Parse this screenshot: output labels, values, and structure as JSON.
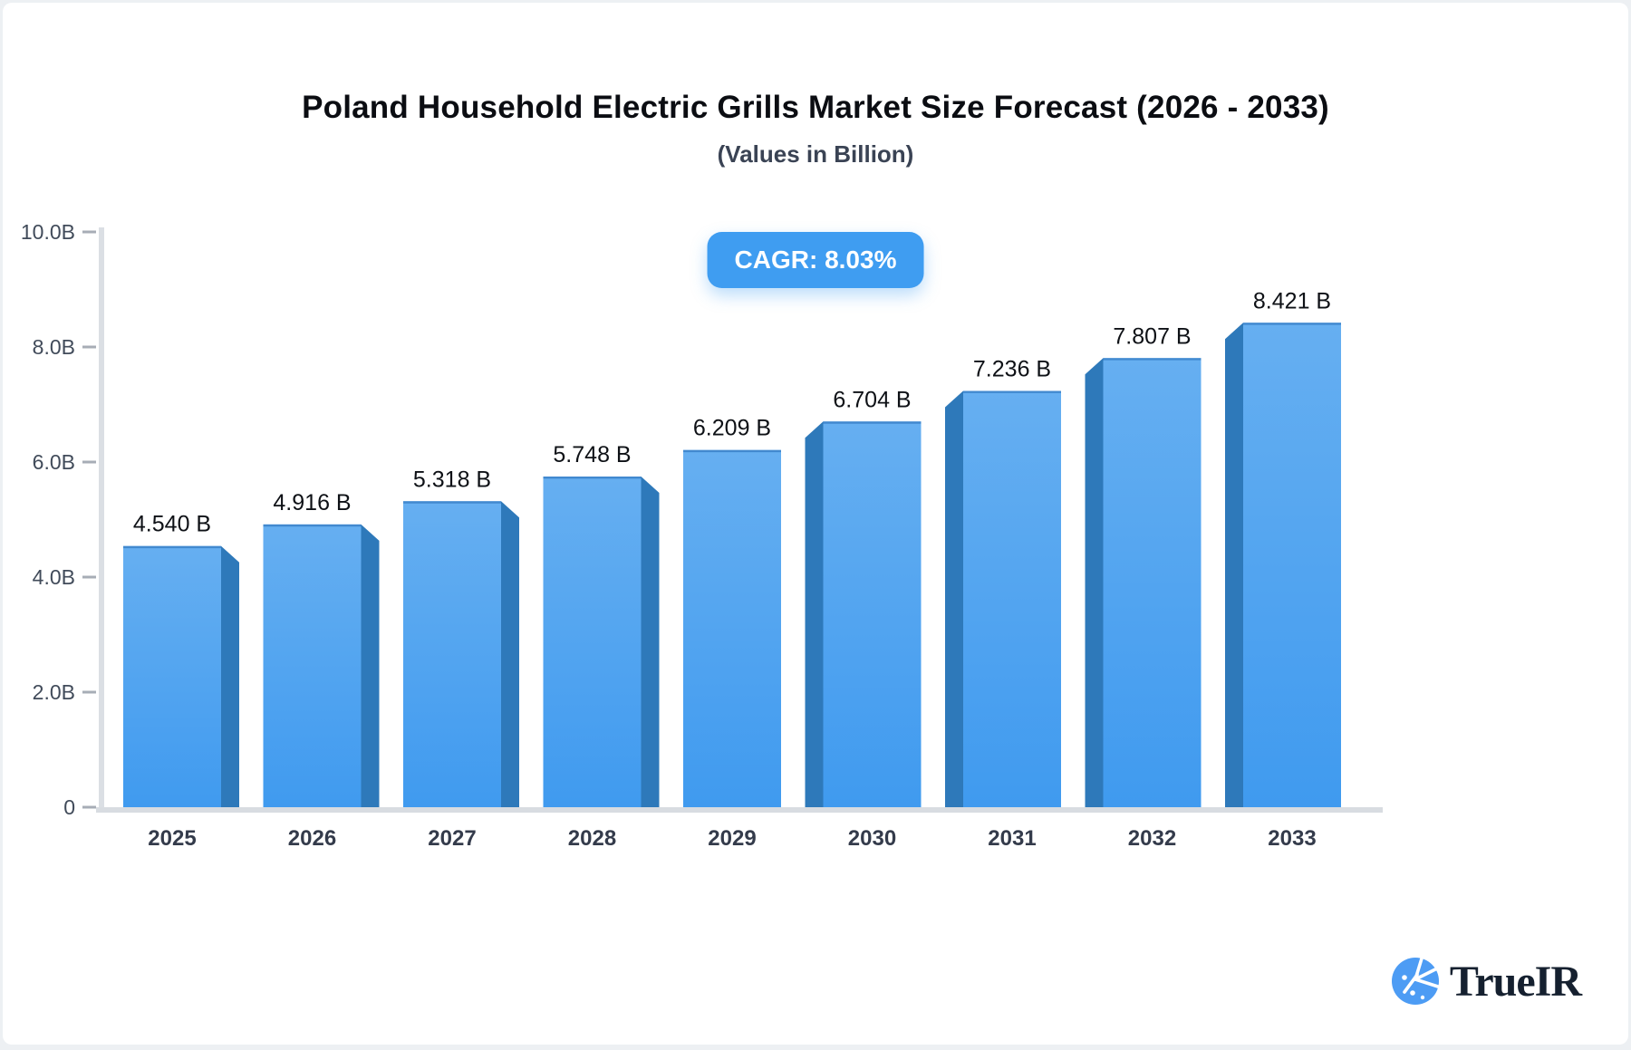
{
  "header": {
    "title": "Poland Household Electric Grills Market Size Forecast (2026 - 2033)",
    "subtitle": "(Values in Billion)"
  },
  "badge": {
    "label": "CAGR: 8.03%"
  },
  "chart_data": {
    "type": "bar",
    "title": "Poland Household Electric Grills Market Size Forecast (2026 - 2033)",
    "subtitle": "(Values in Billion)",
    "unit": "Billion",
    "cagr": "8.03%",
    "categories": [
      "2025",
      "2026",
      "2027",
      "2028",
      "2029",
      "2030",
      "2031",
      "2032",
      "2033"
    ],
    "values": [
      4.54,
      4.916,
      5.318,
      5.748,
      6.209,
      6.704,
      7.236,
      7.807,
      8.421
    ],
    "bar_labels": [
      "4.540 B",
      "4.916 B",
      "5.318 B",
      "5.748 B",
      "6.209 B",
      "6.704 B",
      "7.236 B",
      "7.807 B",
      "8.421 B"
    ],
    "ylim": [
      0,
      10
    ],
    "yticks": {
      "values": [
        0,
        2,
        4,
        6,
        8,
        10
      ],
      "labels": [
        "0",
        "2.0B",
        "4.0B",
        "6.0B",
        "8.0B",
        "10.0B"
      ]
    },
    "grid": false,
    "legend": false,
    "style": "pseudo-3d bars, center perspective",
    "colors": {
      "bar_front_top": "#66aff1",
      "bar_front_bottom": "#3f9aef",
      "bar_side": "#2e79ba",
      "bar_top_edge": "#4289cf",
      "axis_line": "#dbdfe4",
      "baseline": "#d8dce1",
      "tick_dash": "#a7adb6",
      "tick_text": "#414b5a",
      "year_text": "#343b4b",
      "value_text": "#0e1116",
      "badge_bg": "#3f9df1"
    }
  },
  "logo": {
    "text": "TrueIR",
    "icon": "pie-chart-percent-icon"
  }
}
